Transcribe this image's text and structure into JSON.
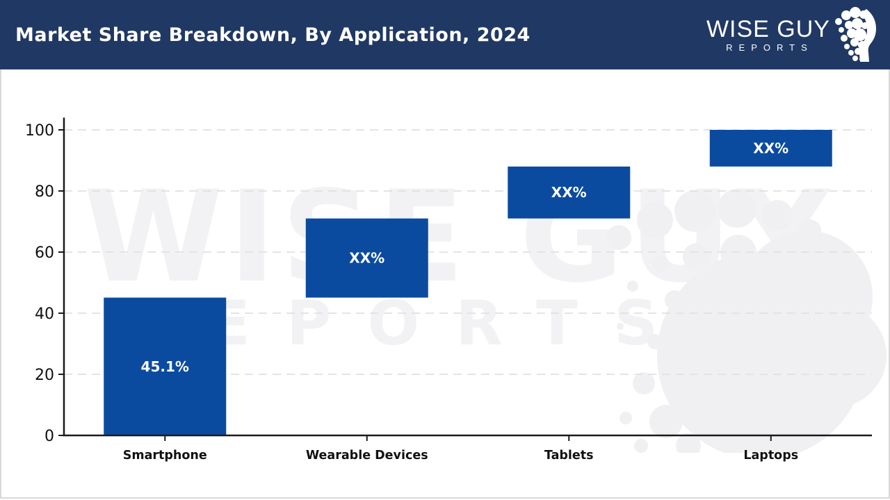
{
  "header": {
    "title": "Market Share Breakdown, By Application, 2024",
    "logo": {
      "wordmark": "WISE GUY",
      "subtitle": "REPORTS"
    }
  },
  "watermark": {
    "line1": "WISE GUY",
    "line2": "REPORTS"
  },
  "chart_data": {
    "type": "bar",
    "subtype": "waterfall-floating-bars",
    "title": "Market Share Breakdown, By Application, 2024",
    "categories": [
      "Smartphone",
      "Wearable Devices",
      "Tablets",
      "Laptops"
    ],
    "segments": [
      {
        "category": "Smartphone",
        "start": 0,
        "end": 45.1,
        "label": "45.1%"
      },
      {
        "category": "Wearable Devices",
        "start": 45.1,
        "end": 71,
        "label": "XX%"
      },
      {
        "category": "Tablets",
        "start": 71,
        "end": 88,
        "label": "XX%"
      },
      {
        "category": "Laptops",
        "start": 88,
        "end": 100,
        "label": "XX%"
      }
    ],
    "yticks": [
      0,
      20,
      40,
      60,
      80,
      100
    ],
    "ylim": [
      0,
      104
    ],
    "xlabel": "",
    "ylabel": "",
    "grid": "horizontal dashed",
    "legend": null,
    "bar_color": "#0b4b9f",
    "label_color": "#ffffff"
  },
  "colors": {
    "header_bg": "#203864",
    "bar": "#0b4b9f",
    "grid": "#e1e1e1",
    "axis_text": "#111111",
    "watermark": "#f2f2f4",
    "frame_border": "#d8d8d8",
    "text_on_dark": "#ffffff"
  }
}
